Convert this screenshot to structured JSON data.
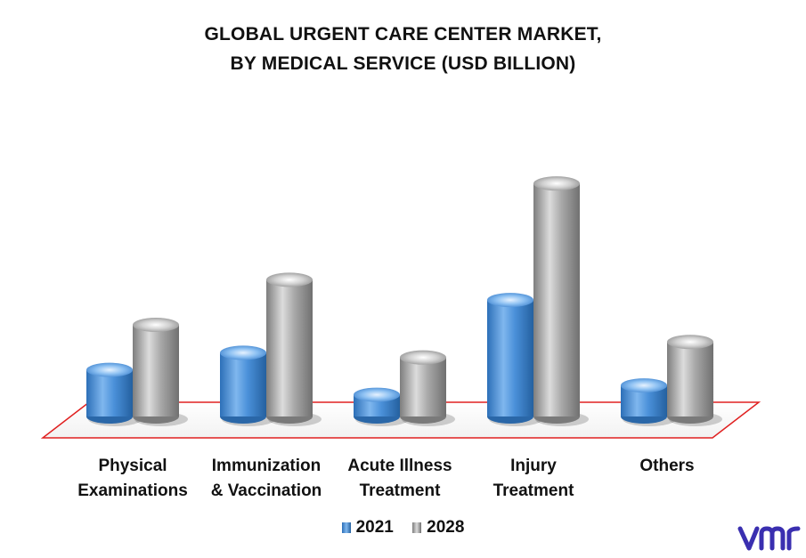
{
  "chart_data": {
    "type": "bar",
    "title_lines": [
      "GLOBAL URGENT CARE CENTER MARKET,",
      "BY MEDICAL SERVICE (USD BILLION)"
    ],
    "categories": [
      [
        "Physical",
        "Examinations"
      ],
      [
        "Immunization",
        "& Vaccination"
      ],
      [
        "Acute Illness",
        "Treatment"
      ],
      [
        "Injury",
        "Treatment"
      ],
      [
        "Others"
      ]
    ],
    "series": [
      {
        "name": "2021",
        "values": [
          6.0,
          8.2,
          2.8,
          15.0,
          4.0
        ]
      },
      {
        "name": "2028",
        "values": [
          11.8,
          17.6,
          7.6,
          30.0,
          9.6
        ]
      }
    ],
    "ylim": [
      0,
      33
    ],
    "grid": false,
    "legend_position": "bottom-center",
    "colors": {
      "2021": "#4a90d9",
      "2028": "#a6a6a6",
      "floor_outline": "#e02020",
      "logo": "#3a2fb0"
    }
  },
  "brand": {
    "logo_icon": "vmr-logo-icon"
  }
}
